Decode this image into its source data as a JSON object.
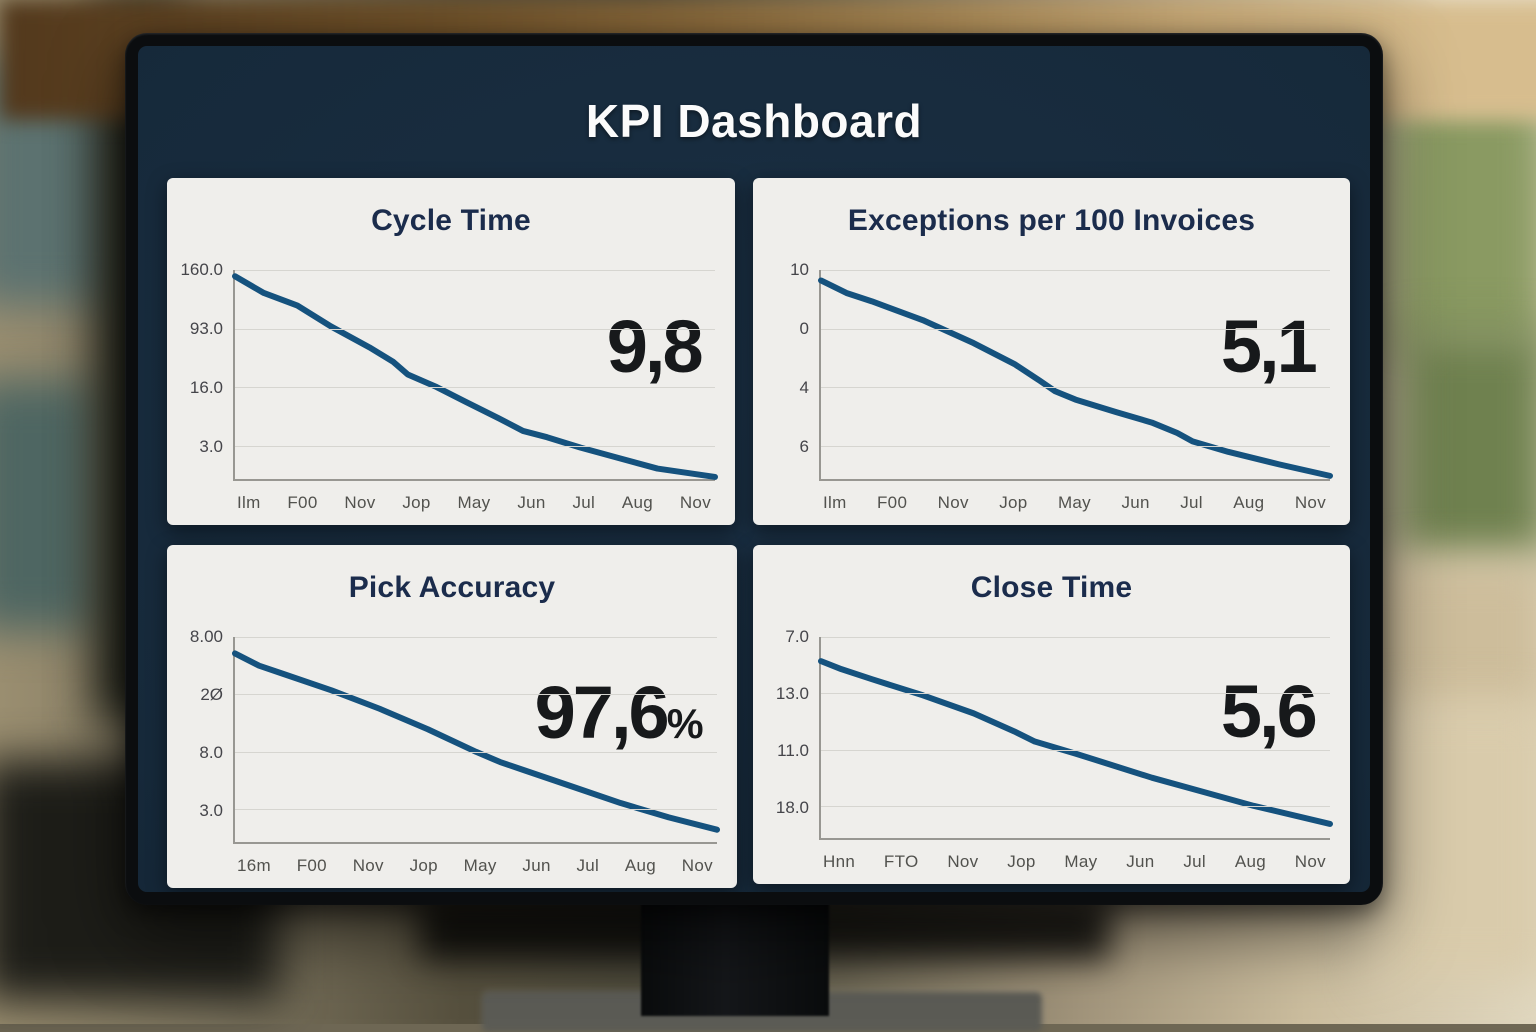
{
  "screen": {
    "title": "KPI Dashboard"
  },
  "theme": {
    "screen_bg": "#16293A",
    "bezel_color": "#0B0D0F",
    "card_bg": "#EFEEEB",
    "card_title_color": "#1B2C4C",
    "kpi_color": "#17191B",
    "trend_line_color": "#15527E"
  },
  "chart_data": [
    {
      "type": "line",
      "title": "Cycle Time",
      "kpi_value": "9,8",
      "kpi_suffix": "",
      "trend": "decreasing",
      "grid": "horizontal",
      "legend": "none",
      "line_color": "#15527E",
      "y_ticks": [
        "160.0",
        "93.0",
        "16.0",
        "3.0"
      ],
      "x_ticks": [
        "Ilm",
        "F00",
        "Nov",
        "Jop",
        "May",
        "Jun",
        "Jul",
        "Aug",
        "Nov"
      ],
      "points_norm": [
        [
          0,
          0.03
        ],
        [
          0.06,
          0.11
        ],
        [
          0.13,
          0.17
        ],
        [
          0.2,
          0.27
        ],
        [
          0.28,
          0.37
        ],
        [
          0.33,
          0.44
        ],
        [
          0.36,
          0.5
        ],
        [
          0.42,
          0.56
        ],
        [
          0.48,
          0.63
        ],
        [
          0.55,
          0.71
        ],
        [
          0.6,
          0.77
        ],
        [
          0.65,
          0.8
        ],
        [
          0.72,
          0.85
        ],
        [
          0.8,
          0.9
        ],
        [
          0.88,
          0.95
        ],
        [
          1,
          0.99
        ]
      ]
    },
    {
      "type": "line",
      "title": "Exceptions per 100 Invoices",
      "kpi_value": "5,1",
      "kpi_suffix": "",
      "trend": "decreasing",
      "grid": "horizontal",
      "legend": "none",
      "line_color": "#15527E",
      "y_ticks": [
        "10",
        "0",
        "4",
        "6"
      ],
      "x_ticks": [
        "Ilm",
        "F00",
        "Nov",
        "Jop",
        "May",
        "Jun",
        "Jul",
        "Aug",
        "Nov"
      ],
      "points_norm": [
        [
          0,
          0.05
        ],
        [
          0.05,
          0.11
        ],
        [
          0.1,
          0.15
        ],
        [
          0.2,
          0.24
        ],
        [
          0.3,
          0.35
        ],
        [
          0.38,
          0.45
        ],
        [
          0.43,
          0.53
        ],
        [
          0.46,
          0.58
        ],
        [
          0.5,
          0.62
        ],
        [
          0.58,
          0.68
        ],
        [
          0.65,
          0.73
        ],
        [
          0.7,
          0.78
        ],
        [
          0.73,
          0.82
        ],
        [
          0.8,
          0.87
        ],
        [
          0.9,
          0.93
        ],
        [
          1,
          0.985
        ]
      ]
    },
    {
      "type": "line",
      "title": "Pick Accuracy",
      "kpi_value": "97,6",
      "kpi_suffix": "%",
      "trend": "decreasing",
      "grid": "horizontal",
      "legend": "none",
      "line_color": "#15527E",
      "y_ticks": [
        "8.00",
        "2Ø",
        "8.0",
        "3.0"
      ],
      "x_ticks": [
        "16m",
        "F00",
        "Nov",
        "Jop",
        "May",
        "Jun",
        "Jul",
        "Aug",
        "Nov"
      ],
      "points_norm": [
        [
          0,
          0.08
        ],
        [
          0.05,
          0.14
        ],
        [
          0.1,
          0.18
        ],
        [
          0.2,
          0.26
        ],
        [
          0.3,
          0.35
        ],
        [
          0.4,
          0.45
        ],
        [
          0.5,
          0.56
        ],
        [
          0.55,
          0.61
        ],
        [
          0.6,
          0.65
        ],
        [
          0.7,
          0.73
        ],
        [
          0.8,
          0.81
        ],
        [
          0.9,
          0.88
        ],
        [
          1,
          0.94
        ]
      ]
    },
    {
      "type": "line",
      "title": "Close Time",
      "kpi_value": "5,6",
      "kpi_suffix": "",
      "trend": "decreasing",
      "grid": "horizontal",
      "legend": "none",
      "line_color": "#15527E",
      "y_ticks": [
        "7.0",
        "13.0",
        "11.0",
        "18.0"
      ],
      "x_ticks": [
        "Hnn",
        "FTO",
        "Nov",
        "Jop",
        "May",
        "Jun",
        "Jul",
        "Aug",
        "Nov"
      ],
      "points_norm": [
        [
          0,
          0.12
        ],
        [
          0.04,
          0.16
        ],
        [
          0.1,
          0.21
        ],
        [
          0.2,
          0.29
        ],
        [
          0.3,
          0.38
        ],
        [
          0.38,
          0.47
        ],
        [
          0.42,
          0.52
        ],
        [
          0.5,
          0.58
        ],
        [
          0.55,
          0.62
        ],
        [
          0.65,
          0.7
        ],
        [
          0.75,
          0.77
        ],
        [
          0.85,
          0.84
        ],
        [
          1,
          0.93
        ]
      ]
    }
  ]
}
